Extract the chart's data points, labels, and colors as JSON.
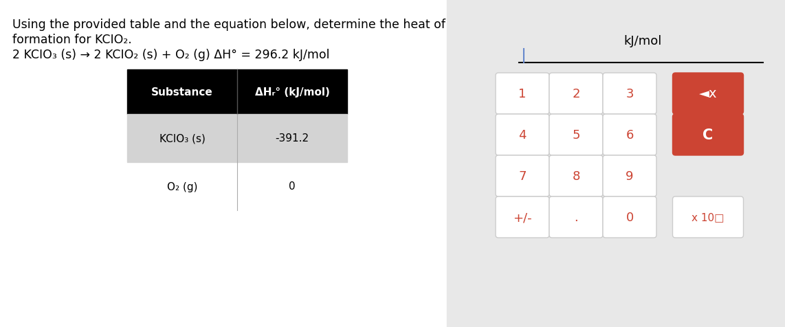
{
  "bg_color": "#f0f0f0",
  "left_bg": "#ffffff",
  "right_bg": "#e8e8e8",
  "title_line1": "Using the provided table and the equation below, determine the heat of",
  "title_line2": "formation for KCIO₂.",
  "equation": "2 KCIO₃ (s) → 2 KCIO₂ (s) + O₂ (g) ΔH° = 296.2 kJ/mol",
  "table_header_bg": "#000000",
  "table_row1_bg": "#d3d3d3",
  "table_cell1_substance": "KCIO₃ (s)",
  "table_cell1_value": "-391.2",
  "table_cell2_substance": "O₂ (g)",
  "table_cell2_value": "0",
  "col1_header": "Substance",
  "col2_header": "ΔHᵣ° (kJ/mol)",
  "display_label": "kJ/mol",
  "btn_color_red": "#cc4433",
  "btn_text_red": "#cc4433",
  "btn_border_color": "#cccccc",
  "buttons_row1": [
    "1",
    "2",
    "3"
  ],
  "buttons_row2": [
    "4",
    "5",
    "6"
  ],
  "buttons_row3": [
    "7",
    "8",
    "9"
  ],
  "buttons_row4": [
    "+/-",
    ".",
    "0"
  ],
  "special_btn1": "◄x",
  "special_btn2": "C",
  "special_btn3": "x 10□"
}
